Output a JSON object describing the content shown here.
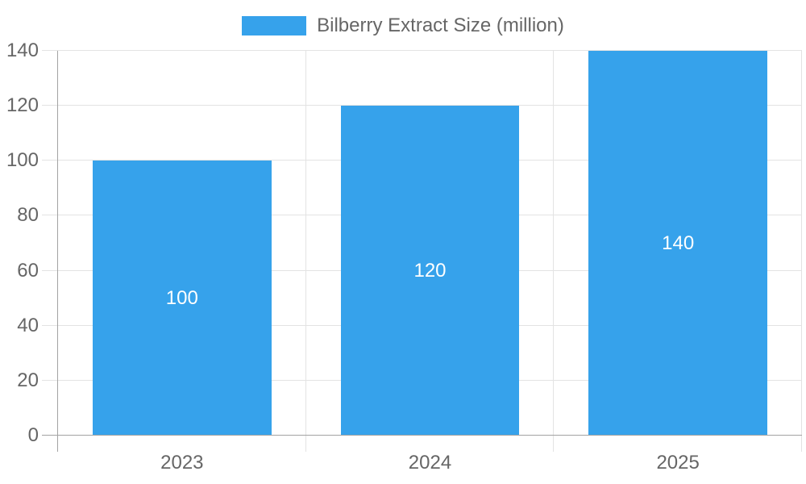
{
  "chart_data": {
    "type": "bar",
    "title": "Bilberry Extract Size (million)",
    "categories": [
      "2023",
      "2024",
      "2025"
    ],
    "values": [
      100,
      120,
      140
    ],
    "series": [
      {
        "name": "Bilberry Extract Size (million)",
        "values": [
          100,
          120,
          140
        ]
      }
    ],
    "data_labels": [
      "100",
      "120",
      "140"
    ],
    "y_ticks": [
      0,
      20,
      40,
      60,
      80,
      100,
      120,
      140
    ],
    "ylim": [
      0,
      140
    ],
    "ytick_step": 20,
    "xlabel": "",
    "ylabel": "",
    "grid": true,
    "legend_position": "top",
    "colors": {
      "bar": "#36A2EB",
      "grid": "#E3E3E3",
      "axis": "#A3A3A3",
      "text": "#666666",
      "data_label": "#FFFFFF",
      "background": "#FFFFFF"
    }
  }
}
